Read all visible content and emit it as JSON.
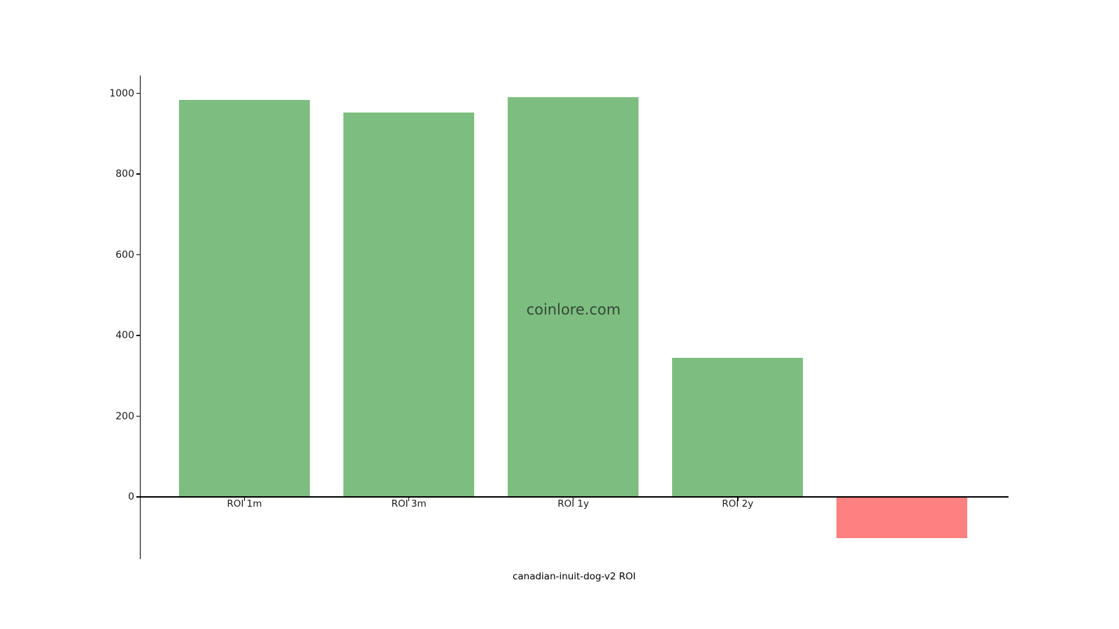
{
  "chart_data": {
    "type": "bar",
    "title": "canadian-inuit-dog-v2 ROI",
    "watermark": "coinlore.com",
    "categories": [
      "ROI 1m",
      "ROI 3m",
      "ROI 1y",
      "ROI 2y",
      ""
    ],
    "values": [
      984,
      953,
      991,
      345,
      -100
    ],
    "xlabel": "",
    "ylabel": "",
    "yticks": [
      0,
      200,
      400,
      600,
      800,
      1000
    ],
    "ylim": [
      -153,
      1045
    ],
    "grid": false,
    "legend": "none",
    "colors": {
      "positive": "#7dbe80",
      "negative": "#ff8080",
      "axis": "#000000",
      "tick_label": "#1a1a1a",
      "title": "#000000"
    }
  }
}
